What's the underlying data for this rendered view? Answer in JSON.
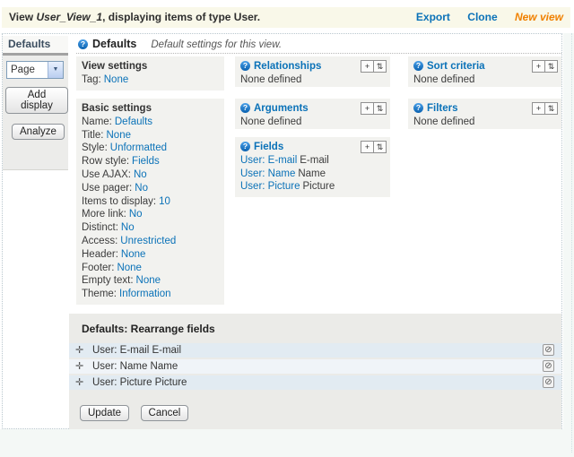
{
  "colors": {
    "link_blue": "#0b72b8",
    "accent_orange": "#f08000",
    "message_bar_bg": "#f9f8e9",
    "side_panel_gray": "#ececea",
    "box_gray": "#f2f2ef",
    "rearrange_bg": "#ebebe8",
    "row_blue": "#e2ebf2",
    "row_light": "#f0f4f8"
  },
  "icons": {
    "help": "?",
    "add": "+",
    "rearrange": "⇅",
    "drag": "✛",
    "remove": "⊘",
    "select_arrow": "▼"
  },
  "message_bar": {
    "prefix": "View",
    "view_name": "User_View_1",
    "suffix": ", displaying items of type User.",
    "links": {
      "export": "Export",
      "clone": "Clone",
      "new_view": "New view"
    }
  },
  "sidebar": {
    "active_tab": "Defaults",
    "display_type_select": {
      "value": "Page"
    },
    "add_display_button": "Add display",
    "analyze_button": "Analyze"
  },
  "display": {
    "title": "Defaults",
    "subtitle": "Default settings for this view.",
    "view_settings": {
      "title": "View settings",
      "rows": [
        {
          "label": "Tag:",
          "value": "None"
        }
      ]
    },
    "basic_settings": {
      "title": "Basic settings",
      "rows": [
        {
          "label": "Name:",
          "value": "Defaults"
        },
        {
          "label": "Title:",
          "value": "None"
        },
        {
          "label": "Style:",
          "value": "Unformatted"
        },
        {
          "label": "Row style:",
          "value": "Fields"
        },
        {
          "label": "Use AJAX:",
          "value": "No"
        },
        {
          "label": "Use pager:",
          "value": "No"
        },
        {
          "label": "Items to display:",
          "value": "10"
        },
        {
          "label": "More link:",
          "value": "No"
        },
        {
          "label": "Distinct:",
          "value": "No"
        },
        {
          "label": "Access:",
          "value": "Unrestricted"
        },
        {
          "label": "Header:",
          "value": "None"
        },
        {
          "label": "Footer:",
          "value": "None"
        },
        {
          "label": "Empty text:",
          "value": "None"
        },
        {
          "label": "Theme:",
          "value": "Information"
        }
      ]
    },
    "relationships": {
      "title": "Relationships",
      "empty": "None defined"
    },
    "arguments": {
      "title": "Arguments",
      "empty": "None defined"
    },
    "fields": {
      "title": "Fields",
      "items": [
        {
          "link": "User: E-mail",
          "suffix": "E-mail"
        },
        {
          "link": "User: Name",
          "suffix": "Name"
        },
        {
          "link": "User: Picture",
          "suffix": "Picture"
        }
      ]
    },
    "sort_criteria": {
      "title": "Sort criteria",
      "empty": "None defined"
    },
    "filters": {
      "title": "Filters",
      "empty": "None defined"
    }
  },
  "rearrange": {
    "title": "Defaults: Rearrange fields",
    "rows": [
      {
        "label": "User: E-mail E-mail"
      },
      {
        "label": "User: Name Name"
      },
      {
        "label": "User: Picture Picture"
      }
    ],
    "update_button": "Update",
    "cancel_button": "Cancel"
  }
}
